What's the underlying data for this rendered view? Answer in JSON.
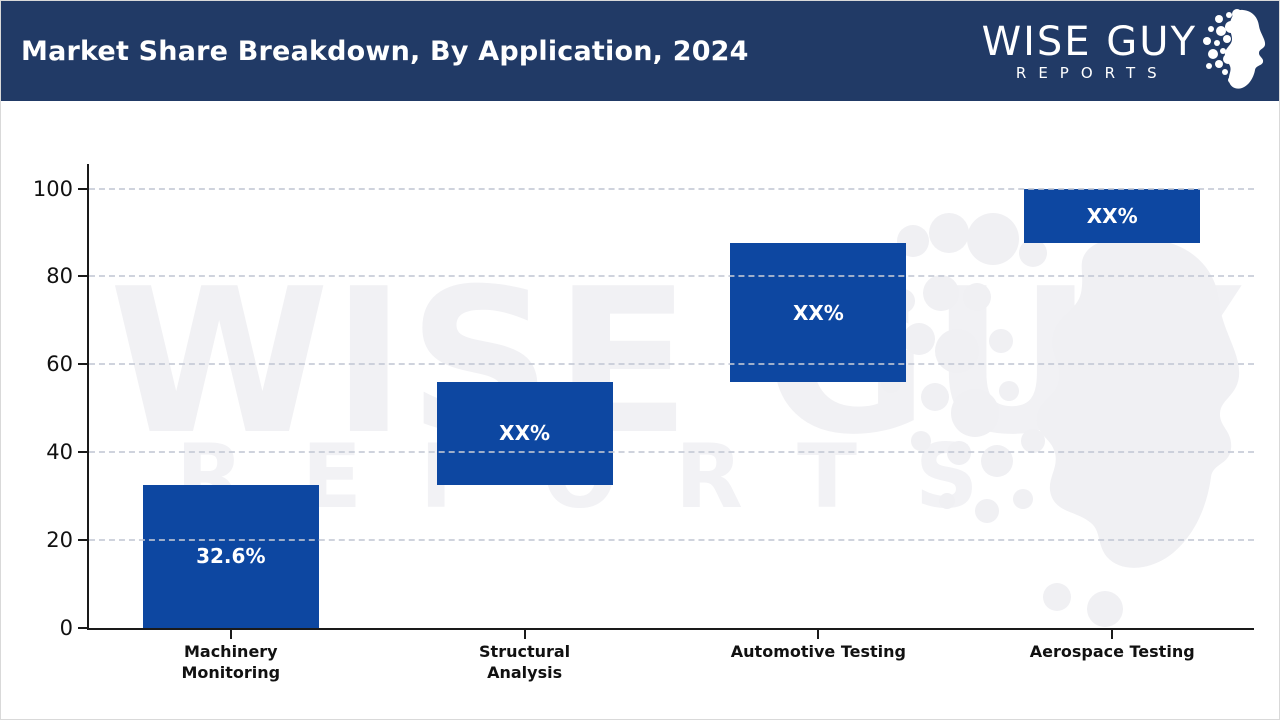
{
  "header": {
    "title": "Market Share Breakdown, By Application, 2024",
    "bg_color": "#213a66",
    "logo": {
      "line1": "WISE GUY",
      "line2": "REPORTS"
    }
  },
  "watermark": {
    "line1": "WISE GUY",
    "line2": "REPORTS"
  },
  "chart_data": {
    "type": "bar",
    "subtype": "waterfall",
    "title": "Market Share Breakdown, By Application, 2024",
    "categories": [
      "Machinery Monitoring",
      "Structural Analysis",
      "Automotive Testing",
      "Aerospace Testing"
    ],
    "category_lines": [
      [
        "Machinery",
        "Monitoring"
      ],
      [
        "Structural",
        "Analysis"
      ],
      [
        "Automotive Testing"
      ],
      [
        "Aerospace Testing"
      ]
    ],
    "segments": [
      {
        "category": "Machinery Monitoring",
        "start": 0,
        "end": 32.6,
        "label": "32.6%"
      },
      {
        "category": "Structural Analysis",
        "start": 32.6,
        "end": 56,
        "label": "XX%"
      },
      {
        "category": "Automotive Testing",
        "start": 56,
        "end": 87.5,
        "label": "XX%"
      },
      {
        "category": "Aerospace Testing",
        "start": 87.5,
        "end": 100,
        "label": "XX%"
      }
    ],
    "xlabel": "",
    "ylabel": "",
    "ylim": [
      0,
      100
    ],
    "yticks": [
      0,
      20,
      40,
      60,
      80,
      100
    ],
    "grid": "horizontal-dashed",
    "legend": "none",
    "bar_color": "#0d47a1",
    "bar_label_color": "#ffffff"
  }
}
